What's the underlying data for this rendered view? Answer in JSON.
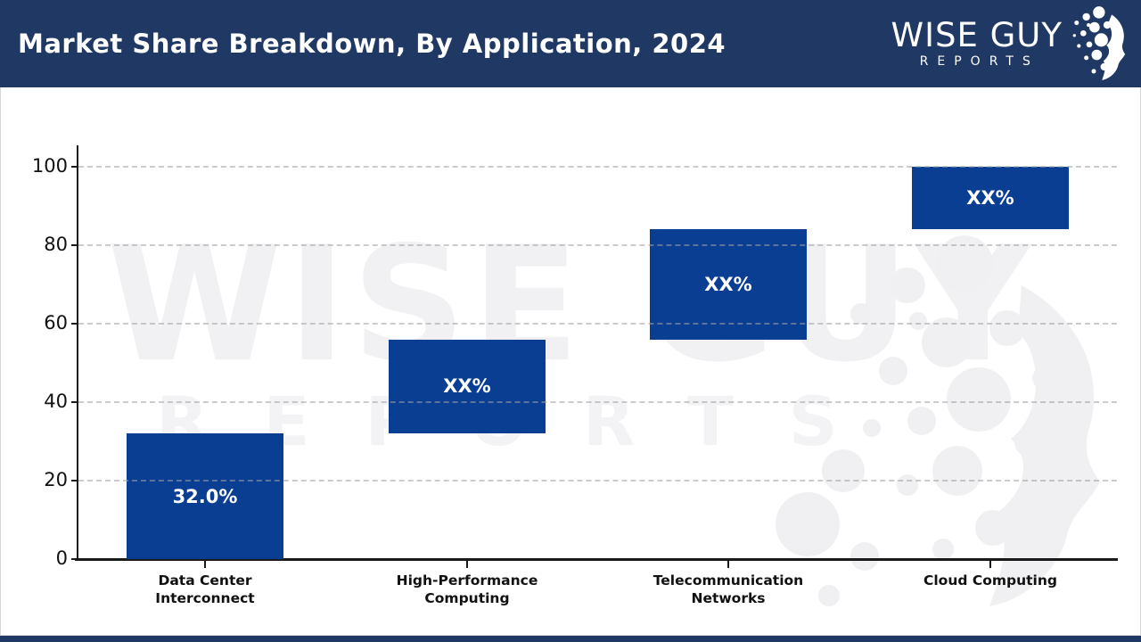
{
  "header": {
    "title": "Market Share Breakdown, By Application, 2024",
    "logo": {
      "line1": "WISE GUY",
      "line2": "REPORTS"
    }
  },
  "watermark": {
    "line1": "WISE GUY",
    "line2": "REPORTS"
  },
  "colors": {
    "header_bg": "#203864",
    "bar": "#0a3e93",
    "grid": "#a0a0a0",
    "axis": "#1a1a1a",
    "watermark": "#f1f1f4",
    "bar_label": "#ffffff",
    "tick_text": "#111111"
  },
  "chart_data": {
    "type": "bar",
    "subtype": "waterfall",
    "title": "Market Share Breakdown, By Application, 2024",
    "categories": [
      "Data Center Interconnect",
      "High-Performance Computing",
      "Telecommunication Networks",
      "Cloud Computing"
    ],
    "segments": [
      {
        "label": "Data Center Interconnect",
        "lines": [
          "Data Center",
          "Interconnect"
        ],
        "start": 0,
        "end": 32,
        "value": 32,
        "bar_label": "32.0%"
      },
      {
        "label": "High-Performance Computing",
        "lines": [
          "High-Performance",
          "Computing"
        ],
        "start": 32,
        "end": 56,
        "value": 24,
        "bar_label": "XX%"
      },
      {
        "label": "Telecommunication Networks",
        "lines": [
          "Telecommunication",
          "Networks"
        ],
        "start": 56,
        "end": 84,
        "value": 28,
        "bar_label": "XX%"
      },
      {
        "label": "Cloud Computing",
        "lines": [
          "Cloud Computing"
        ],
        "start": 84,
        "end": 100,
        "value": 16,
        "bar_label": "XX%"
      }
    ],
    "y_ticks": [
      0,
      20,
      40,
      60,
      80,
      100
    ],
    "ylim": [
      0,
      105
    ],
    "xlabel": "",
    "ylabel": "",
    "grid": "horizontal-dashed",
    "legend": "none"
  }
}
